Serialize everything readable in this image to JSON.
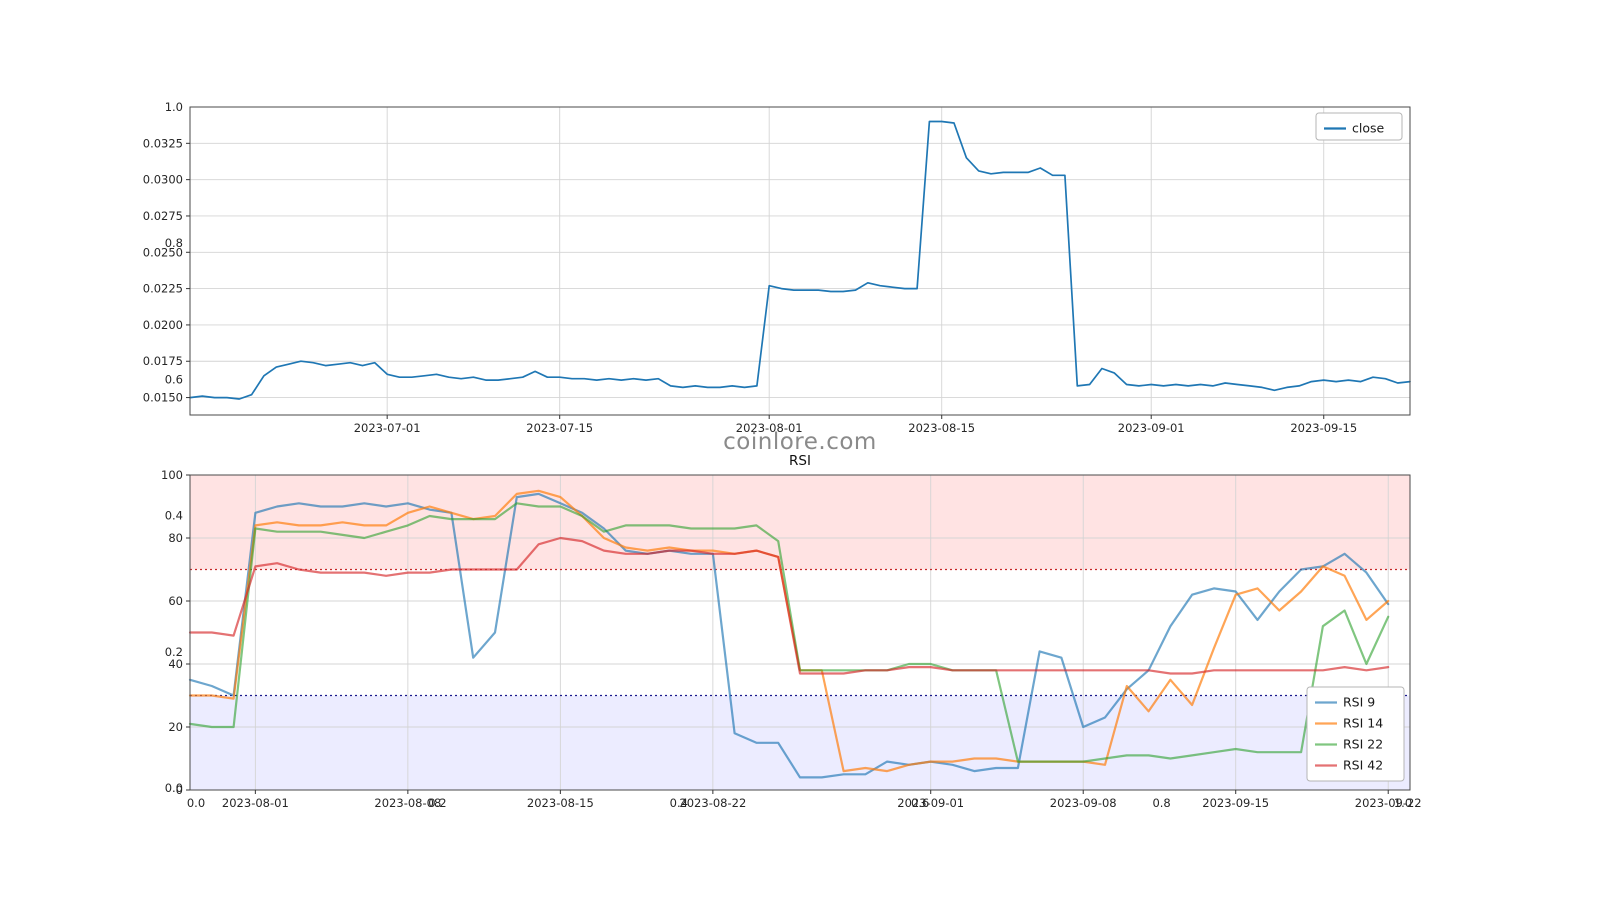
{
  "watermark": {
    "text": "coinlore.com",
    "color": "#8a8a8a"
  },
  "overlay_axis": {
    "ticks": [
      0.0,
      0.2,
      0.4,
      0.6,
      0.8,
      1.0
    ],
    "labels": [
      "0.0",
      "0.2",
      "0.4",
      "0.6",
      "0.8",
      "1.0"
    ],
    "color": "#262626"
  },
  "chart_data": [
    {
      "type": "line",
      "id": "close-price",
      "title": "",
      "legend": {
        "position": "top-right",
        "entries": [
          "close"
        ]
      },
      "xlim": [
        "2023-06-15",
        "2023-09-22"
      ],
      "ylim": [
        0.0138,
        0.035
      ],
      "x_ticks": [
        "2023-07-01",
        "2023-07-15",
        "2023-08-01",
        "2023-08-15",
        "2023-09-01",
        "2023-09-15"
      ],
      "y_ticks": [
        0.015,
        0.0175,
        0.02,
        0.0225,
        0.025,
        0.0275,
        0.03,
        0.0325
      ],
      "y_tick_labels": [
        "0.0150",
        "0.0175",
        "0.0200",
        "0.0225",
        "0.0250",
        "0.0275",
        "0.0300",
        "0.0325"
      ],
      "grid": true,
      "series": [
        {
          "name": "close",
          "color": "#1f77b4",
          "width": 1.7,
          "start": "2023-06-15",
          "values": [
            0.015,
            0.0151,
            0.015,
            0.015,
            0.0149,
            0.0152,
            0.0165,
            0.0171,
            0.0173,
            0.0175,
            0.0174,
            0.0172,
            0.0173,
            0.0174,
            0.0172,
            0.0174,
            0.0166,
            0.0164,
            0.0164,
            0.0165,
            0.0166,
            0.0164,
            0.0163,
            0.0164,
            0.0162,
            0.0162,
            0.0163,
            0.0164,
            0.0168,
            0.0164,
            0.0164,
            0.0163,
            0.0163,
            0.0162,
            0.0163,
            0.0162,
            0.0163,
            0.0162,
            0.0163,
            0.0158,
            0.0157,
            0.0158,
            0.0157,
            0.0157,
            0.0158,
            0.0157,
            0.0158,
            0.0227,
            0.0225,
            0.0224,
            0.0224,
            0.0224,
            0.0223,
            0.0223,
            0.0224,
            0.0229,
            0.0227,
            0.0226,
            0.0225,
            0.0225,
            0.034,
            0.034,
            0.0339,
            0.0315,
            0.0306,
            0.0304,
            0.0305,
            0.0305,
            0.0305,
            0.0308,
            0.0303,
            0.0303,
            0.0158,
            0.0159,
            0.017,
            0.0167,
            0.0159,
            0.0158,
            0.0159,
            0.0158,
            0.0159,
            0.0158,
            0.0159,
            0.0158,
            0.016,
            0.0159,
            0.0158,
            0.0157,
            0.0155,
            0.0157,
            0.0158,
            0.0161,
            0.0162,
            0.0161,
            0.0162,
            0.0161,
            0.0164,
            0.0163,
            0.016,
            0.0161
          ]
        }
      ]
    },
    {
      "type": "line",
      "id": "rsi",
      "title": "RSI",
      "legend": {
        "position": "bottom-right",
        "entries": [
          "RSI 9",
          "RSI 14",
          "RSI 22",
          "RSI 42"
        ]
      },
      "xlim": [
        "2023-07-29",
        "2023-09-23"
      ],
      "ylim": [
        0,
        100
      ],
      "x_ticks": [
        "2023-08-01",
        "2023-08-08",
        "2023-08-15",
        "2023-08-22",
        "2023-09-01",
        "2023-09-08",
        "2023-09-15",
        "2023-09-22"
      ],
      "y_ticks": [
        0,
        20,
        40,
        60,
        80,
        100
      ],
      "y_tick_labels": [
        "0",
        "20",
        "40",
        "60",
        "80",
        "100"
      ],
      "grid": true,
      "bands": [
        {
          "name": "overbought-band",
          "y1": 70,
          "y2": 100,
          "color": "rgba(255,60,60,0.14)"
        },
        {
          "name": "oversold-band",
          "y1": 0,
          "y2": 30,
          "color": "rgba(70,70,255,0.10)"
        }
      ],
      "hlines": [
        {
          "name": "overbought-line",
          "y": 70,
          "color": "#c62828"
        },
        {
          "name": "oversold-line",
          "y": 30,
          "color": "#1a1a8c"
        }
      ],
      "series": [
        {
          "name": "RSI 9",
          "color": "rgba(31,119,180,0.65)",
          "width": 2.2,
          "start": "2023-07-29",
          "values": [
            35,
            33,
            30,
            88,
            90,
            91,
            90,
            90,
            91,
            90,
            91,
            89,
            88,
            42,
            50,
            93,
            94,
            91,
            88,
            83,
            76,
            75,
            76,
            75,
            75,
            18,
            15,
            15,
            4,
            4,
            5,
            5,
            9,
            8,
            9,
            8,
            6,
            7,
            7,
            44,
            42,
            20,
            23,
            32,
            38,
            52,
            62,
            64,
            63,
            54,
            63,
            70,
            71,
            75,
            69,
            59
          ]
        },
        {
          "name": "RSI 14",
          "color": "rgba(255,127,14,0.7)",
          "width": 2.2,
          "start": "2023-07-29",
          "values": [
            30,
            30,
            29,
            84,
            85,
            84,
            84,
            85,
            84,
            84,
            88,
            90,
            88,
            86,
            87,
            94,
            95,
            93,
            87,
            80,
            77,
            76,
            77,
            76,
            76,
            75,
            76,
            74,
            38,
            38,
            6,
            7,
            6,
            8,
            9,
            9,
            10,
            10,
            9,
            9,
            9,
            9,
            8,
            33,
            25,
            35,
            27,
            45,
            62,
            64,
            57,
            63,
            71,
            68,
            54,
            60
          ]
        },
        {
          "name": "RSI 22",
          "color": "rgba(44,160,44,0.6)",
          "width": 2.2,
          "start": "2023-07-29",
          "values": [
            21,
            20,
            20,
            83,
            82,
            82,
            82,
            81,
            80,
            82,
            84,
            87,
            86,
            86,
            86,
            91,
            90,
            90,
            87,
            82,
            84,
            84,
            84,
            83,
            83,
            83,
            84,
            79,
            38,
            38,
            38,
            38,
            38,
            40,
            40,
            38,
            38,
            38,
            9,
            9,
            9,
            9,
            10,
            11,
            11,
            10,
            11,
            12,
            13,
            12,
            12,
            12,
            52,
            57,
            40,
            55
          ]
        },
        {
          "name": "RSI 42",
          "color": "rgba(214,39,40,0.65)",
          "width": 2.2,
          "start": "2023-07-29",
          "values": [
            50,
            50,
            49,
            71,
            72,
            70,
            69,
            69,
            69,
            68,
            69,
            69,
            70,
            70,
            70,
            70,
            78,
            80,
            79,
            76,
            75,
            75,
            76,
            76,
            75,
            75,
            76,
            74,
            37,
            37,
            37,
            38,
            38,
            39,
            39,
            38,
            38,
            38,
            38,
            38,
            38,
            38,
            38,
            38,
            38,
            37,
            37,
            38,
            38,
            38,
            38,
            38,
            38,
            39,
            38,
            39
          ]
        }
      ]
    }
  ]
}
